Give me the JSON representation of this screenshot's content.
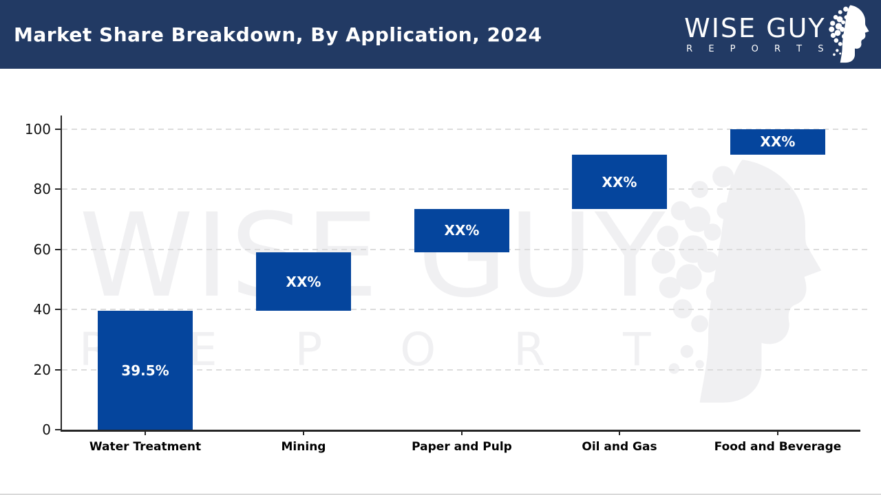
{
  "header": {
    "title": "Market Share Breakdown, By Application, 2024",
    "logo": {
      "primary": "WISE GUY",
      "secondary": "R E P O R T S"
    }
  },
  "watermark": {
    "primary": "WISE GUY",
    "secondary": "R E P O R T S"
  },
  "colors": {
    "header_bg": "#223A64",
    "bar_blue": "#05459D",
    "grid_gray": "#DCDCDC",
    "axis_black": "#262626",
    "bar_label_white": "#FFFFFF",
    "watermark_gray": "#F0F0F2"
  },
  "chart_data": {
    "type": "bar",
    "subtype": "waterfall",
    "title": "Market Share Breakdown, By Application, 2024",
    "categories": [
      "Water Treatment",
      "Mining",
      "Paper and Pulp",
      "Oil and Gas",
      "Food and Beverage"
    ],
    "series": [
      {
        "name": "Market share (%)",
        "segments": [
          {
            "category": "Water Treatment",
            "start": 0,
            "end": 39.5,
            "label": "39.5%"
          },
          {
            "category": "Mining",
            "start": 39.5,
            "end": 59,
            "label": "XX%"
          },
          {
            "category": "Paper and Pulp",
            "start": 59,
            "end": 73.4,
            "label": "XX%"
          },
          {
            "category": "Oil and Gas",
            "start": 73.4,
            "end": 91.4,
            "label": "XX%"
          },
          {
            "category": "Food and Beverage",
            "start": 91.4,
            "end": 100,
            "label": "XX%"
          }
        ]
      }
    ],
    "xlabel": "",
    "ylabel": "",
    "ylim": [
      0,
      100
    ],
    "yticks": [
      0,
      20,
      40,
      60,
      80,
      100
    ],
    "grid": "horizontal dashed gridlines at 20, 40, 60, 80, 100",
    "legend": "none"
  }
}
